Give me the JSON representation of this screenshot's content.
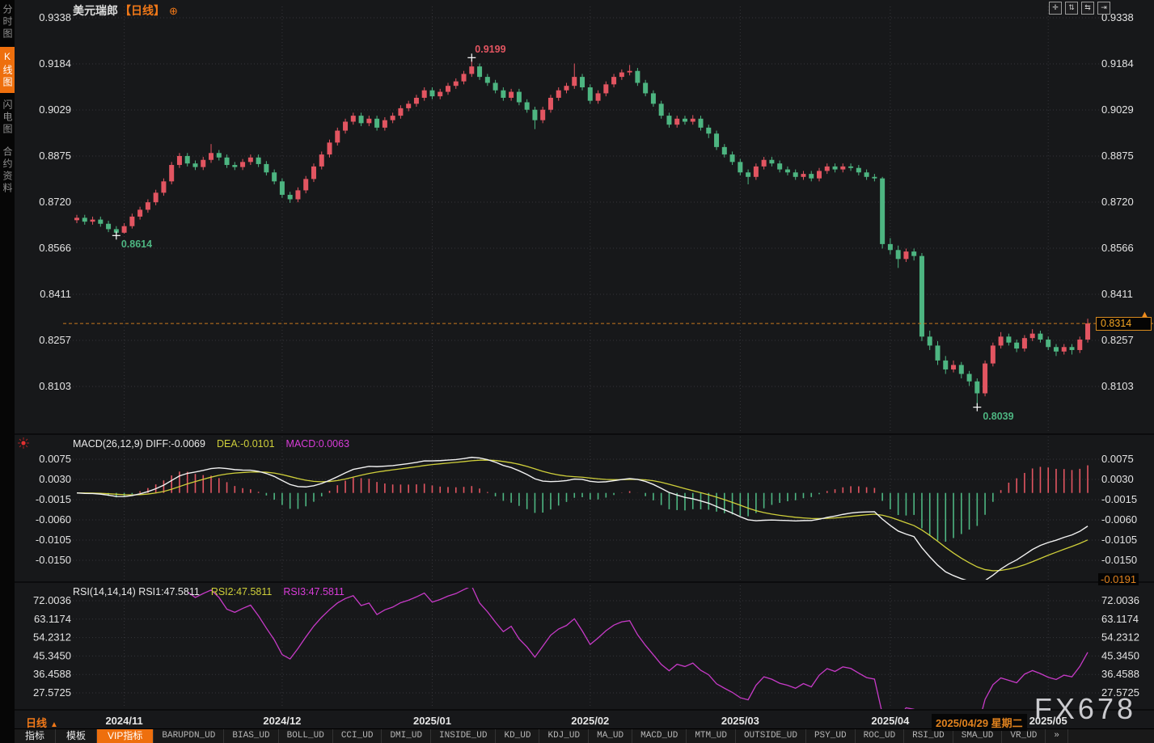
{
  "header": {
    "title": "美元瑞郎",
    "period_tag": "【日线】",
    "target_icon": "⊕"
  },
  "sidebar": {
    "items": [
      {
        "label": "分时图",
        "active": false
      },
      {
        "label": "K线图",
        "active": true
      },
      {
        "label": "闪电图",
        "active": false
      },
      {
        "label": "合约资料",
        "active": false
      }
    ]
  },
  "top_icons": [
    {
      "name": "crosshair-icon",
      "glyph": "✛"
    },
    {
      "name": "axis-scale-y-icon",
      "glyph": "⇅"
    },
    {
      "name": "axis-scale-x-icon",
      "glyph": "⇆"
    },
    {
      "name": "pan-right-icon",
      "glyph": "⇥"
    }
  ],
  "main_panel": {
    "annotation_high": "0.9199",
    "annotation_low1": "0.8614",
    "annotation_low2": "0.8039",
    "price_tag": "0.8314",
    "price_arrow": "▲"
  },
  "macd_panel": {
    "header_white": "MACD(26,12,9) DIFF:-0.0069",
    "header_dea": "DEA:-0.0101",
    "header_macd": "MACD:0.0063",
    "min_tag": "-0.0191"
  },
  "rsi_panel": {
    "header_white": "RSI(14,14,14) RSI1:47.5811",
    "header_rsi2": "RSI2:47.5811",
    "header_rsi3": "RSI3:47.5811"
  },
  "xaxis": {
    "period_label": "日线",
    "period_arrow": "▲",
    "selected_date": "2025/04/29 星期二"
  },
  "toolbar": {
    "items": [
      {
        "label": "指标",
        "style": "cn",
        "active": false
      },
      {
        "label": "模板",
        "style": "cn",
        "active": false
      },
      {
        "label": "VIP指标",
        "style": "cn",
        "active": true
      },
      {
        "label": "BARUPDN_UD",
        "style": "code",
        "active": false
      },
      {
        "label": "BIAS_UD",
        "style": "code",
        "active": false
      },
      {
        "label": "BOLL_UD",
        "style": "code",
        "active": false
      },
      {
        "label": "CCI_UD",
        "style": "code",
        "active": false
      },
      {
        "label": "DMI_UD",
        "style": "code",
        "active": false
      },
      {
        "label": "INSIDE_UD",
        "style": "code",
        "active": false
      },
      {
        "label": "KD_UD",
        "style": "code",
        "active": false
      },
      {
        "label": "KDJ_UD",
        "style": "code",
        "active": false
      },
      {
        "label": "MA_UD",
        "style": "code",
        "active": false
      },
      {
        "label": "MACD_UD",
        "style": "code",
        "active": false
      },
      {
        "label": "MTM_UD",
        "style": "code",
        "active": false
      },
      {
        "label": "OUTSIDE_UD",
        "style": "code",
        "active": false
      },
      {
        "label": "PSY_UD",
        "style": "code",
        "active": false
      },
      {
        "label": "ROC_UD",
        "style": "code",
        "active": false
      },
      {
        "label": "RSI_UD",
        "style": "code",
        "active": false
      },
      {
        "label": "SMA_UD",
        "style": "code",
        "active": false
      },
      {
        "label": "VR_UD",
        "style": "code",
        "active": false
      },
      {
        "label": "»",
        "style": "code",
        "active": false
      }
    ]
  },
  "watermark": "FX678",
  "colors": {
    "up": "#e25561",
    "down": "#4db581",
    "accent_orange": "#f07818",
    "diff_line": "#f2f2f2",
    "dea_line": "#cfcf3a",
    "macd_value": "#d83cd8",
    "rsi_line": "#c73ac7",
    "grid": "#35353a",
    "axis_text": "#e3e3e3"
  },
  "chart_data": {
    "type": "candlestick",
    "title": "美元瑞郎 日线",
    "current_price": 0.8314,
    "price_axis_ticks": [
      0.9338,
      0.9184,
      0.9029,
      0.8875,
      0.872,
      0.8566,
      0.8411,
      0.8257,
      0.8103
    ],
    "months": [
      {
        "label": "2024/11",
        "index": 6
      },
      {
        "label": "2024/12",
        "index": 26
      },
      {
        "label": "2025/01",
        "index": 45
      },
      {
        "label": "2025/02",
        "index": 65
      },
      {
        "label": "2025/03",
        "index": 84
      },
      {
        "label": "2025/04",
        "index": 103
      },
      {
        "label": "2025/05",
        "index": 123
      }
    ],
    "selected_date": "2025/04/29 星期二",
    "annotations": {
      "high_index": 50,
      "low1_index": 5,
      "low2_index": 114
    },
    "macd": {
      "params": [
        26,
        12,
        9
      ],
      "diff": -0.0069,
      "dea": -0.0101,
      "macd": 0.0063,
      "axis_ticks": [
        0.0075,
        0.003,
        -0.0015,
        -0.006,
        -0.0105,
        -0.015
      ],
      "min_tick": -0.0191
    },
    "rsi": {
      "params": [
        14,
        14,
        14
      ],
      "rsi1": 47.5811,
      "rsi2": 47.5811,
      "rsi3": 47.5811,
      "axis_ticks": [
        72.0036,
        63.1174,
        54.2312,
        45.345,
        36.4588,
        27.5725
      ]
    },
    "candles": [
      [
        0.866,
        0.8678,
        0.865,
        0.8668
      ],
      [
        0.8668,
        0.8678,
        0.8645,
        0.8655
      ],
      [
        0.8655,
        0.8672,
        0.8645,
        0.8662
      ],
      [
        0.8662,
        0.8672,
        0.8638,
        0.8648
      ],
      [
        0.8648,
        0.8658,
        0.862,
        0.863
      ],
      [
        0.863,
        0.864,
        0.8614,
        0.8618
      ],
      [
        0.8618,
        0.865,
        0.8615,
        0.864
      ],
      [
        0.864,
        0.8682,
        0.8632,
        0.8672
      ],
      [
        0.8672,
        0.8705,
        0.8662,
        0.8695
      ],
      [
        0.8695,
        0.873,
        0.8685,
        0.872
      ],
      [
        0.872,
        0.8762,
        0.871,
        0.8752
      ],
      [
        0.8752,
        0.88,
        0.8742,
        0.879
      ],
      [
        0.879,
        0.8855,
        0.878,
        0.8845
      ],
      [
        0.8845,
        0.8885,
        0.8835,
        0.8875
      ],
      [
        0.8875,
        0.8885,
        0.884,
        0.885
      ],
      [
        0.885,
        0.886,
        0.8828,
        0.8838
      ],
      [
        0.8838,
        0.8872,
        0.8828,
        0.8862
      ],
      [
        0.8862,
        0.8915,
        0.8852,
        0.8885
      ],
      [
        0.8885,
        0.8895,
        0.886,
        0.887
      ],
      [
        0.887,
        0.888,
        0.8835,
        0.8845
      ],
      [
        0.8845,
        0.8855,
        0.8828,
        0.8838
      ],
      [
        0.8838,
        0.8865,
        0.8828,
        0.8855
      ],
      [
        0.8855,
        0.888,
        0.8845,
        0.887
      ],
      [
        0.887,
        0.888,
        0.8838,
        0.8848
      ],
      [
        0.8848,
        0.8858,
        0.881,
        0.882
      ],
      [
        0.882,
        0.883,
        0.878,
        0.879
      ],
      [
        0.879,
        0.88,
        0.8735,
        0.8745
      ],
      [
        0.8745,
        0.8755,
        0.8718,
        0.873
      ],
      [
        0.873,
        0.877,
        0.872,
        0.876
      ],
      [
        0.876,
        0.8808,
        0.875,
        0.8798
      ],
      [
        0.8798,
        0.885,
        0.8788,
        0.884
      ],
      [
        0.884,
        0.889,
        0.883,
        0.888
      ],
      [
        0.888,
        0.893,
        0.887,
        0.892
      ],
      [
        0.892,
        0.897,
        0.891,
        0.896
      ],
      [
        0.896,
        0.9,
        0.895,
        0.899
      ],
      [
        0.899,
        0.902,
        0.898,
        0.901
      ],
      [
        0.901,
        0.902,
        0.8975,
        0.8985
      ],
      [
        0.8985,
        0.901,
        0.8975,
        0.9
      ],
      [
        0.9,
        0.901,
        0.896,
        0.897
      ],
      [
        0.897,
        0.9005,
        0.896,
        0.8995
      ],
      [
        0.8995,
        0.902,
        0.8985,
        0.901
      ],
      [
        0.901,
        0.9045,
        0.9,
        0.9035
      ],
      [
        0.9035,
        0.906,
        0.9025,
        0.905
      ],
      [
        0.905,
        0.908,
        0.904,
        0.907
      ],
      [
        0.907,
        0.9105,
        0.906,
        0.9095
      ],
      [
        0.9095,
        0.9105,
        0.9065,
        0.9075
      ],
      [
        0.9075,
        0.91,
        0.9065,
        0.909
      ],
      [
        0.909,
        0.912,
        0.908,
        0.911
      ],
      [
        0.911,
        0.9135,
        0.91,
        0.9125
      ],
      [
        0.9125,
        0.916,
        0.9115,
        0.915
      ],
      [
        0.915,
        0.9199,
        0.914,
        0.9175
      ],
      [
        0.9175,
        0.9185,
        0.913,
        0.914
      ],
      [
        0.914,
        0.915,
        0.911,
        0.912
      ],
      [
        0.912,
        0.913,
        0.9085,
        0.9095
      ],
      [
        0.9095,
        0.9105,
        0.906,
        0.907
      ],
      [
        0.907,
        0.91,
        0.906,
        0.909
      ],
      [
        0.909,
        0.91,
        0.9045,
        0.9055
      ],
      [
        0.9055,
        0.9065,
        0.902,
        0.903
      ],
      [
        0.903,
        0.904,
        0.8965,
        0.8995
      ],
      [
        0.8995,
        0.904,
        0.8985,
        0.903
      ],
      [
        0.903,
        0.908,
        0.902,
        0.907
      ],
      [
        0.907,
        0.9105,
        0.906,
        0.9095
      ],
      [
        0.9095,
        0.912,
        0.9085,
        0.911
      ],
      [
        0.911,
        0.9185,
        0.91,
        0.914
      ],
      [
        0.914,
        0.915,
        0.9095,
        0.9105
      ],
      [
        0.9105,
        0.9115,
        0.905,
        0.906
      ],
      [
        0.906,
        0.9095,
        0.905,
        0.9085
      ],
      [
        0.9085,
        0.9125,
        0.9075,
        0.9115
      ],
      [
        0.9115,
        0.915,
        0.9105,
        0.914
      ],
      [
        0.914,
        0.9165,
        0.913,
        0.9155
      ],
      [
        0.9155,
        0.918,
        0.9145,
        0.916
      ],
      [
        0.916,
        0.917,
        0.911,
        0.912
      ],
      [
        0.912,
        0.913,
        0.9075,
        0.9085
      ],
      [
        0.9085,
        0.9095,
        0.904,
        0.905
      ],
      [
        0.905,
        0.906,
        0.9,
        0.901
      ],
      [
        0.901,
        0.902,
        0.897,
        0.898
      ],
      [
        0.898,
        0.901,
        0.897,
        0.9
      ],
      [
        0.9,
        0.901,
        0.898,
        0.899
      ],
      [
        0.899,
        0.9012,
        0.898,
        0.9
      ],
      [
        0.9,
        0.901,
        0.896,
        0.897
      ],
      [
        0.897,
        0.898,
        0.8935,
        0.895
      ],
      [
        0.895,
        0.896,
        0.8895,
        0.8905
      ],
      [
        0.8905,
        0.8915,
        0.887,
        0.888
      ],
      [
        0.888,
        0.889,
        0.8845,
        0.8855
      ],
      [
        0.8855,
        0.8865,
        0.881,
        0.882
      ],
      [
        0.882,
        0.883,
        0.878,
        0.8805
      ],
      [
        0.8805,
        0.885,
        0.8795,
        0.884
      ],
      [
        0.884,
        0.8872,
        0.883,
        0.8862
      ],
      [
        0.8862,
        0.8872,
        0.884,
        0.885
      ],
      [
        0.885,
        0.886,
        0.882,
        0.883
      ],
      [
        0.883,
        0.884,
        0.881,
        0.882
      ],
      [
        0.882,
        0.883,
        0.8795,
        0.8805
      ],
      [
        0.8805,
        0.8825,
        0.8795,
        0.8815
      ],
      [
        0.8815,
        0.8825,
        0.879,
        0.88
      ],
      [
        0.88,
        0.8835,
        0.879,
        0.8825
      ],
      [
        0.8825,
        0.885,
        0.8815,
        0.884
      ],
      [
        0.884,
        0.885,
        0.882,
        0.883
      ],
      [
        0.883,
        0.885,
        0.882,
        0.884
      ],
      [
        0.884,
        0.885,
        0.8825,
        0.8835
      ],
      [
        0.8835,
        0.8845,
        0.881,
        0.882
      ],
      [
        0.882,
        0.883,
        0.8795,
        0.8805
      ],
      [
        0.8805,
        0.8815,
        0.879,
        0.88
      ],
      [
        0.88,
        0.8805,
        0.8565,
        0.858
      ],
      [
        0.858,
        0.86,
        0.8545,
        0.856
      ],
      [
        0.856,
        0.8575,
        0.85,
        0.853
      ],
      [
        0.853,
        0.8565,
        0.852,
        0.8555
      ],
      [
        0.8555,
        0.8565,
        0.8525,
        0.854
      ],
      [
        0.854,
        0.855,
        0.8255,
        0.827
      ],
      [
        0.827,
        0.829,
        0.8225,
        0.824
      ],
      [
        0.824,
        0.8255,
        0.8175,
        0.819
      ],
      [
        0.819,
        0.8205,
        0.8145,
        0.816
      ],
      [
        0.816,
        0.819,
        0.815,
        0.8175
      ],
      [
        0.8175,
        0.8185,
        0.813,
        0.8145
      ],
      [
        0.8145,
        0.8155,
        0.8105,
        0.812
      ],
      [
        0.812,
        0.813,
        0.8039,
        0.808
      ],
      [
        0.808,
        0.819,
        0.807,
        0.818
      ],
      [
        0.818,
        0.825,
        0.817,
        0.824
      ],
      [
        0.824,
        0.8285,
        0.823,
        0.827
      ],
      [
        0.827,
        0.828,
        0.824,
        0.825
      ],
      [
        0.825,
        0.826,
        0.8218,
        0.823
      ],
      [
        0.823,
        0.8275,
        0.822,
        0.8265
      ],
      [
        0.8265,
        0.8295,
        0.8255,
        0.828
      ],
      [
        0.828,
        0.829,
        0.825,
        0.826
      ],
      [
        0.826,
        0.827,
        0.8225,
        0.8235
      ],
      [
        0.8235,
        0.8245,
        0.8205,
        0.822
      ],
      [
        0.822,
        0.8245,
        0.821,
        0.8235
      ],
      [
        0.8235,
        0.8245,
        0.821,
        0.8225
      ],
      [
        0.8225,
        0.827,
        0.8215,
        0.826
      ],
      [
        0.826,
        0.833,
        0.825,
        0.8314
      ]
    ]
  }
}
